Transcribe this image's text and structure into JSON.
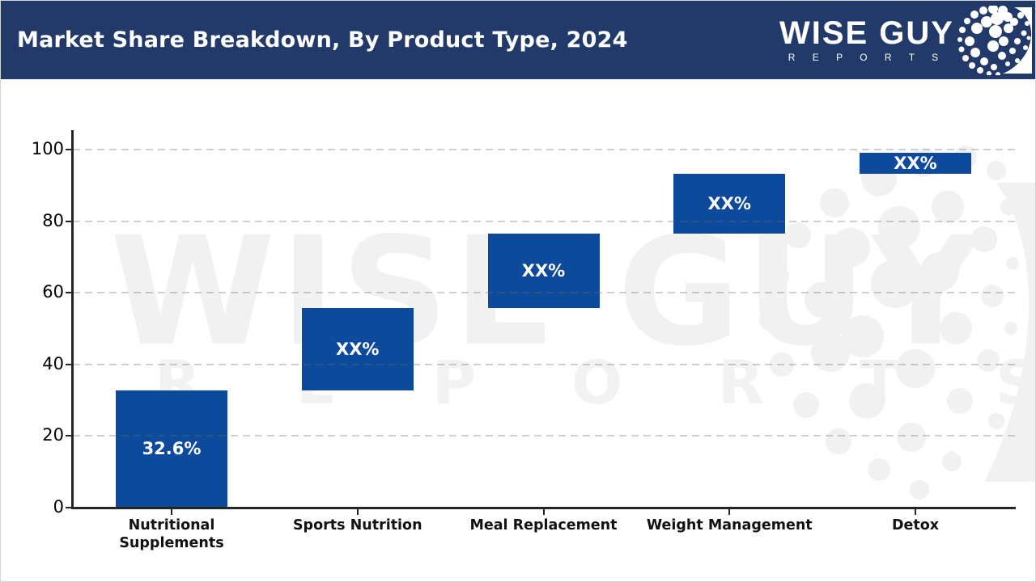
{
  "header": {
    "title": "Market Share Breakdown, By Product Type, 2024",
    "logo": {
      "name": "WISE GUY",
      "tagline": "R E P O R T S"
    }
  },
  "watermark": {
    "line1": "WISE GUY",
    "line2": "R E P O R T S"
  },
  "chart_data": {
    "type": "bar",
    "subtype": "floating-segment-waterfall",
    "title": "Market Share Breakdown, By Product Type, 2024",
    "xlabel": "",
    "ylabel": "",
    "categories": [
      "Nutritional Supplements",
      "Sports Nutrition",
      "Meal Replacement",
      "Weight Management",
      "Detox"
    ],
    "segments": [
      {
        "category": "Nutritional Supplements",
        "start": 0,
        "end": 32.6,
        "label": "32.6%"
      },
      {
        "category": "Sports Nutrition",
        "start": 32.6,
        "end": 55.8,
        "label": "XX%"
      },
      {
        "category": "Meal Replacement",
        "start": 55.8,
        "end": 76.5,
        "label": "XX%"
      },
      {
        "category": "Weight Management",
        "start": 76.5,
        "end": 93.2,
        "label": "XX%"
      },
      {
        "category": "Detox",
        "start": 93.2,
        "end": 99.2,
        "label": "XX%"
      }
    ],
    "yticks": [
      0,
      20,
      40,
      60,
      80,
      100
    ],
    "ylim": [
      0,
      105
    ],
    "grid": true,
    "grid_style": "dashed",
    "legend": "none",
    "bar_color": "#0d4a9c",
    "bar_label_color": "#ffffff"
  },
  "colors": {
    "header_bg": "#223a69",
    "bar": "#0d4a9c",
    "axis": "#262626",
    "grid": "#d9d9d9",
    "watermark": "#f1f1f1",
    "page_bg": "#ffffff",
    "border": "#d4d4d4"
  }
}
